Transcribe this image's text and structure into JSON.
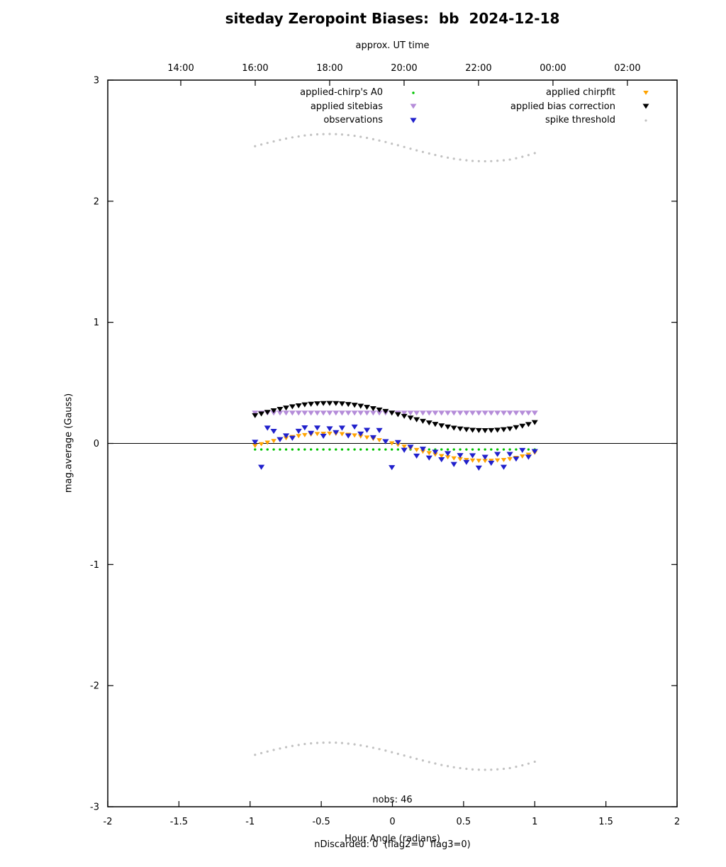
{
  "chart_data": {
    "type": "scatter",
    "title": "siteday Zeropoint Biases:  bb  2024-12-18",
    "annotations": {
      "nobs": "nobs: 46",
      "ndiscarded": "nDiscarded: 0  (flag2=0  flag3=0)"
    },
    "axes": {
      "x": {
        "label": "Hour Angle (radians)",
        "range": [
          -2,
          2
        ],
        "ticks": [
          {
            "v": -2,
            "l": "-2"
          },
          {
            "v": -1.5,
            "l": "-1.5"
          },
          {
            "v": -1,
            "l": "-1"
          },
          {
            "v": -0.5,
            "l": "-0.5"
          },
          {
            "v": 0,
            "l": "0"
          },
          {
            "v": 0.5,
            "l": "0.5"
          },
          {
            "v": 1,
            "l": "1"
          },
          {
            "v": 1.5,
            "l": "1.5"
          },
          {
            "v": 2,
            "l": "2"
          }
        ]
      },
      "x_top": {
        "label": "approx. UT time",
        "ticks": [
          {
            "v": -1.487,
            "l": "14:00"
          },
          {
            "v": -0.964,
            "l": "16:00"
          },
          {
            "v": -0.441,
            "l": "18:00"
          },
          {
            "v": 0.082,
            "l": "20:00"
          },
          {
            "v": 0.605,
            "l": "22:00"
          },
          {
            "v": 1.128,
            "l": "00:00"
          },
          {
            "v": 1.651,
            "l": "02:00"
          }
        ]
      },
      "y": {
        "label": "mag.average (Gauss)",
        "range": [
          -3,
          3
        ],
        "ticks": [
          {
            "v": -3,
            "l": "-3"
          },
          {
            "v": -2,
            "l": "-2"
          },
          {
            "v": -1,
            "l": "-1"
          },
          {
            "v": 0,
            "l": "0"
          },
          {
            "v": 1,
            "l": "1"
          },
          {
            "v": 2,
            "l": "2"
          },
          {
            "v": 3,
            "l": "3"
          }
        ]
      }
    },
    "legend": {
      "columns": [
        [
          "applied-chirp's A0",
          "applied sitebias",
          "observations"
        ],
        [
          "applied chirpfit",
          "applied bias correction",
          "spike threshold"
        ]
      ]
    },
    "x": [
      -0.965,
      -0.921,
      -0.878,
      -0.834,
      -0.79,
      -0.747,
      -0.703,
      -0.659,
      -0.616,
      -0.572,
      -0.528,
      -0.485,
      -0.441,
      -0.397,
      -0.354,
      -0.31,
      -0.266,
      -0.223,
      -0.179,
      -0.135,
      -0.092,
      -0.048,
      -0.004,
      0.039,
      0.083,
      0.127,
      0.17,
      0.214,
      0.258,
      0.301,
      0.345,
      0.389,
      0.432,
      0.476,
      0.52,
      0.563,
      0.607,
      0.651,
      0.694,
      0.738,
      0.782,
      0.825,
      0.869,
      0.913,
      0.956,
      1.0
    ],
    "series": [
      {
        "name": "applied-chirp's A0",
        "color": "#00c400",
        "marker": "dot",
        "size": 1.7,
        "y": [
          -0.05,
          -0.05,
          -0.05,
          -0.05,
          -0.05,
          -0.05,
          -0.05,
          -0.05,
          -0.05,
          -0.05,
          -0.05,
          -0.05,
          -0.05,
          -0.05,
          -0.05,
          -0.05,
          -0.05,
          -0.05,
          -0.05,
          -0.05,
          -0.05,
          -0.05,
          -0.05,
          -0.05,
          -0.05,
          -0.05,
          -0.05,
          -0.05,
          -0.05,
          -0.05,
          -0.05,
          -0.05,
          -0.05,
          -0.05,
          -0.05,
          -0.05,
          -0.05,
          -0.05,
          -0.05,
          -0.05,
          -0.05,
          -0.05,
          -0.05,
          -0.05,
          -0.05,
          -0.05
        ]
      },
      {
        "name": "applied sitebias",
        "color": "#b58cd9",
        "marker": "triangle-down",
        "size": 4.5,
        "y": [
          0.25,
          0.25,
          0.25,
          0.25,
          0.25,
          0.25,
          0.25,
          0.25,
          0.25,
          0.25,
          0.25,
          0.25,
          0.25,
          0.25,
          0.25,
          0.25,
          0.25,
          0.25,
          0.25,
          0.25,
          0.25,
          0.25,
          0.25,
          0.25,
          0.25,
          0.25,
          0.25,
          0.25,
          0.25,
          0.25,
          0.25,
          0.25,
          0.25,
          0.25,
          0.25,
          0.25,
          0.25,
          0.25,
          0.25,
          0.25,
          0.25,
          0.25,
          0.25,
          0.25,
          0.25,
          0.25
        ]
      },
      {
        "name": "applied chirpfit",
        "color": "#ffa300",
        "marker": "triangle-down",
        "size": 3.8,
        "y": [
          -0.021,
          -0.007,
          0.006,
          0.019,
          0.031,
          0.042,
          0.052,
          0.06,
          0.068,
          0.073,
          0.077,
          0.079,
          0.08,
          0.079,
          0.076,
          0.071,
          0.065,
          0.057,
          0.048,
          0.037,
          0.026,
          0.014,
          0.0,
          -0.013,
          -0.027,
          -0.041,
          -0.055,
          -0.068,
          -0.081,
          -0.093,
          -0.105,
          -0.115,
          -0.124,
          -0.131,
          -0.137,
          -0.142,
          -0.144,
          -0.145,
          -0.144,
          -0.141,
          -0.137,
          -0.131,
          -0.12,
          -0.108,
          -0.094,
          -0.078
        ]
      },
      {
        "name": "applied bias correction",
        "color": "#000000",
        "marker": "triangle-down",
        "size": 4.5,
        "y": [
          0.229,
          0.243,
          0.256,
          0.269,
          0.281,
          0.292,
          0.302,
          0.31,
          0.318,
          0.323,
          0.327,
          0.329,
          0.33,
          0.329,
          0.326,
          0.321,
          0.315,
          0.307,
          0.298,
          0.287,
          0.276,
          0.264,
          0.25,
          0.237,
          0.223,
          0.209,
          0.195,
          0.182,
          0.169,
          0.157,
          0.145,
          0.135,
          0.126,
          0.119,
          0.113,
          0.108,
          0.106,
          0.105,
          0.106,
          0.109,
          0.113,
          0.119,
          0.13,
          0.142,
          0.156,
          0.172
        ]
      },
      {
        "name": "observations",
        "color": "#2020cc",
        "marker": "triangle-down",
        "size": 4.6,
        "y": [
          0.009,
          -0.197,
          0.126,
          0.099,
          0.031,
          0.062,
          0.042,
          0.1,
          0.128,
          0.083,
          0.127,
          0.059,
          0.12,
          0.089,
          0.126,
          0.061,
          0.135,
          0.077,
          0.108,
          0.047,
          0.106,
          0.014,
          -0.2,
          0.007,
          -0.057,
          -0.031,
          -0.105,
          -0.048,
          -0.121,
          -0.073,
          -0.135,
          -0.085,
          -0.174,
          -0.101,
          -0.157,
          -0.102,
          -0.204,
          -0.115,
          -0.164,
          -0.091,
          -0.197,
          -0.091,
          -0.13,
          -0.058,
          -0.114,
          -0.068
        ]
      },
      {
        "name": "spike threshold",
        "color": "#c2c2c2",
        "marker": "dot",
        "size": 1.6,
        "y_upper": [
          2.454,
          2.468,
          2.481,
          2.494,
          2.506,
          2.517,
          2.527,
          2.535,
          2.543,
          2.548,
          2.552,
          2.554,
          2.555,
          2.554,
          2.551,
          2.546,
          2.54,
          2.532,
          2.523,
          2.512,
          2.501,
          2.489,
          2.475,
          2.462,
          2.448,
          2.434,
          2.42,
          2.407,
          2.394,
          2.382,
          2.37,
          2.36,
          2.351,
          2.344,
          2.338,
          2.333,
          2.331,
          2.33,
          2.331,
          2.334,
          2.338,
          2.344,
          2.355,
          2.367,
          2.381,
          2.397
        ],
        "y_lower": [
          -2.571,
          -2.557,
          -2.544,
          -2.531,
          -2.519,
          -2.508,
          -2.498,
          -2.49,
          -2.482,
          -2.477,
          -2.473,
          -2.471,
          -2.47,
          -2.471,
          -2.474,
          -2.479,
          -2.485,
          -2.493,
          -2.502,
          -2.513,
          -2.524,
          -2.536,
          -2.55,
          -2.563,
          -2.577,
          -2.591,
          -2.605,
          -2.618,
          -2.631,
          -2.643,
          -2.655,
          -2.665,
          -2.674,
          -2.681,
          -2.687,
          -2.692,
          -2.694,
          -2.695,
          -2.694,
          -2.691,
          -2.687,
          -2.681,
          -2.67,
          -2.658,
          -2.644,
          -2.628
        ]
      }
    ],
    "frame_color": "#000000",
    "background": "#ffffff"
  }
}
